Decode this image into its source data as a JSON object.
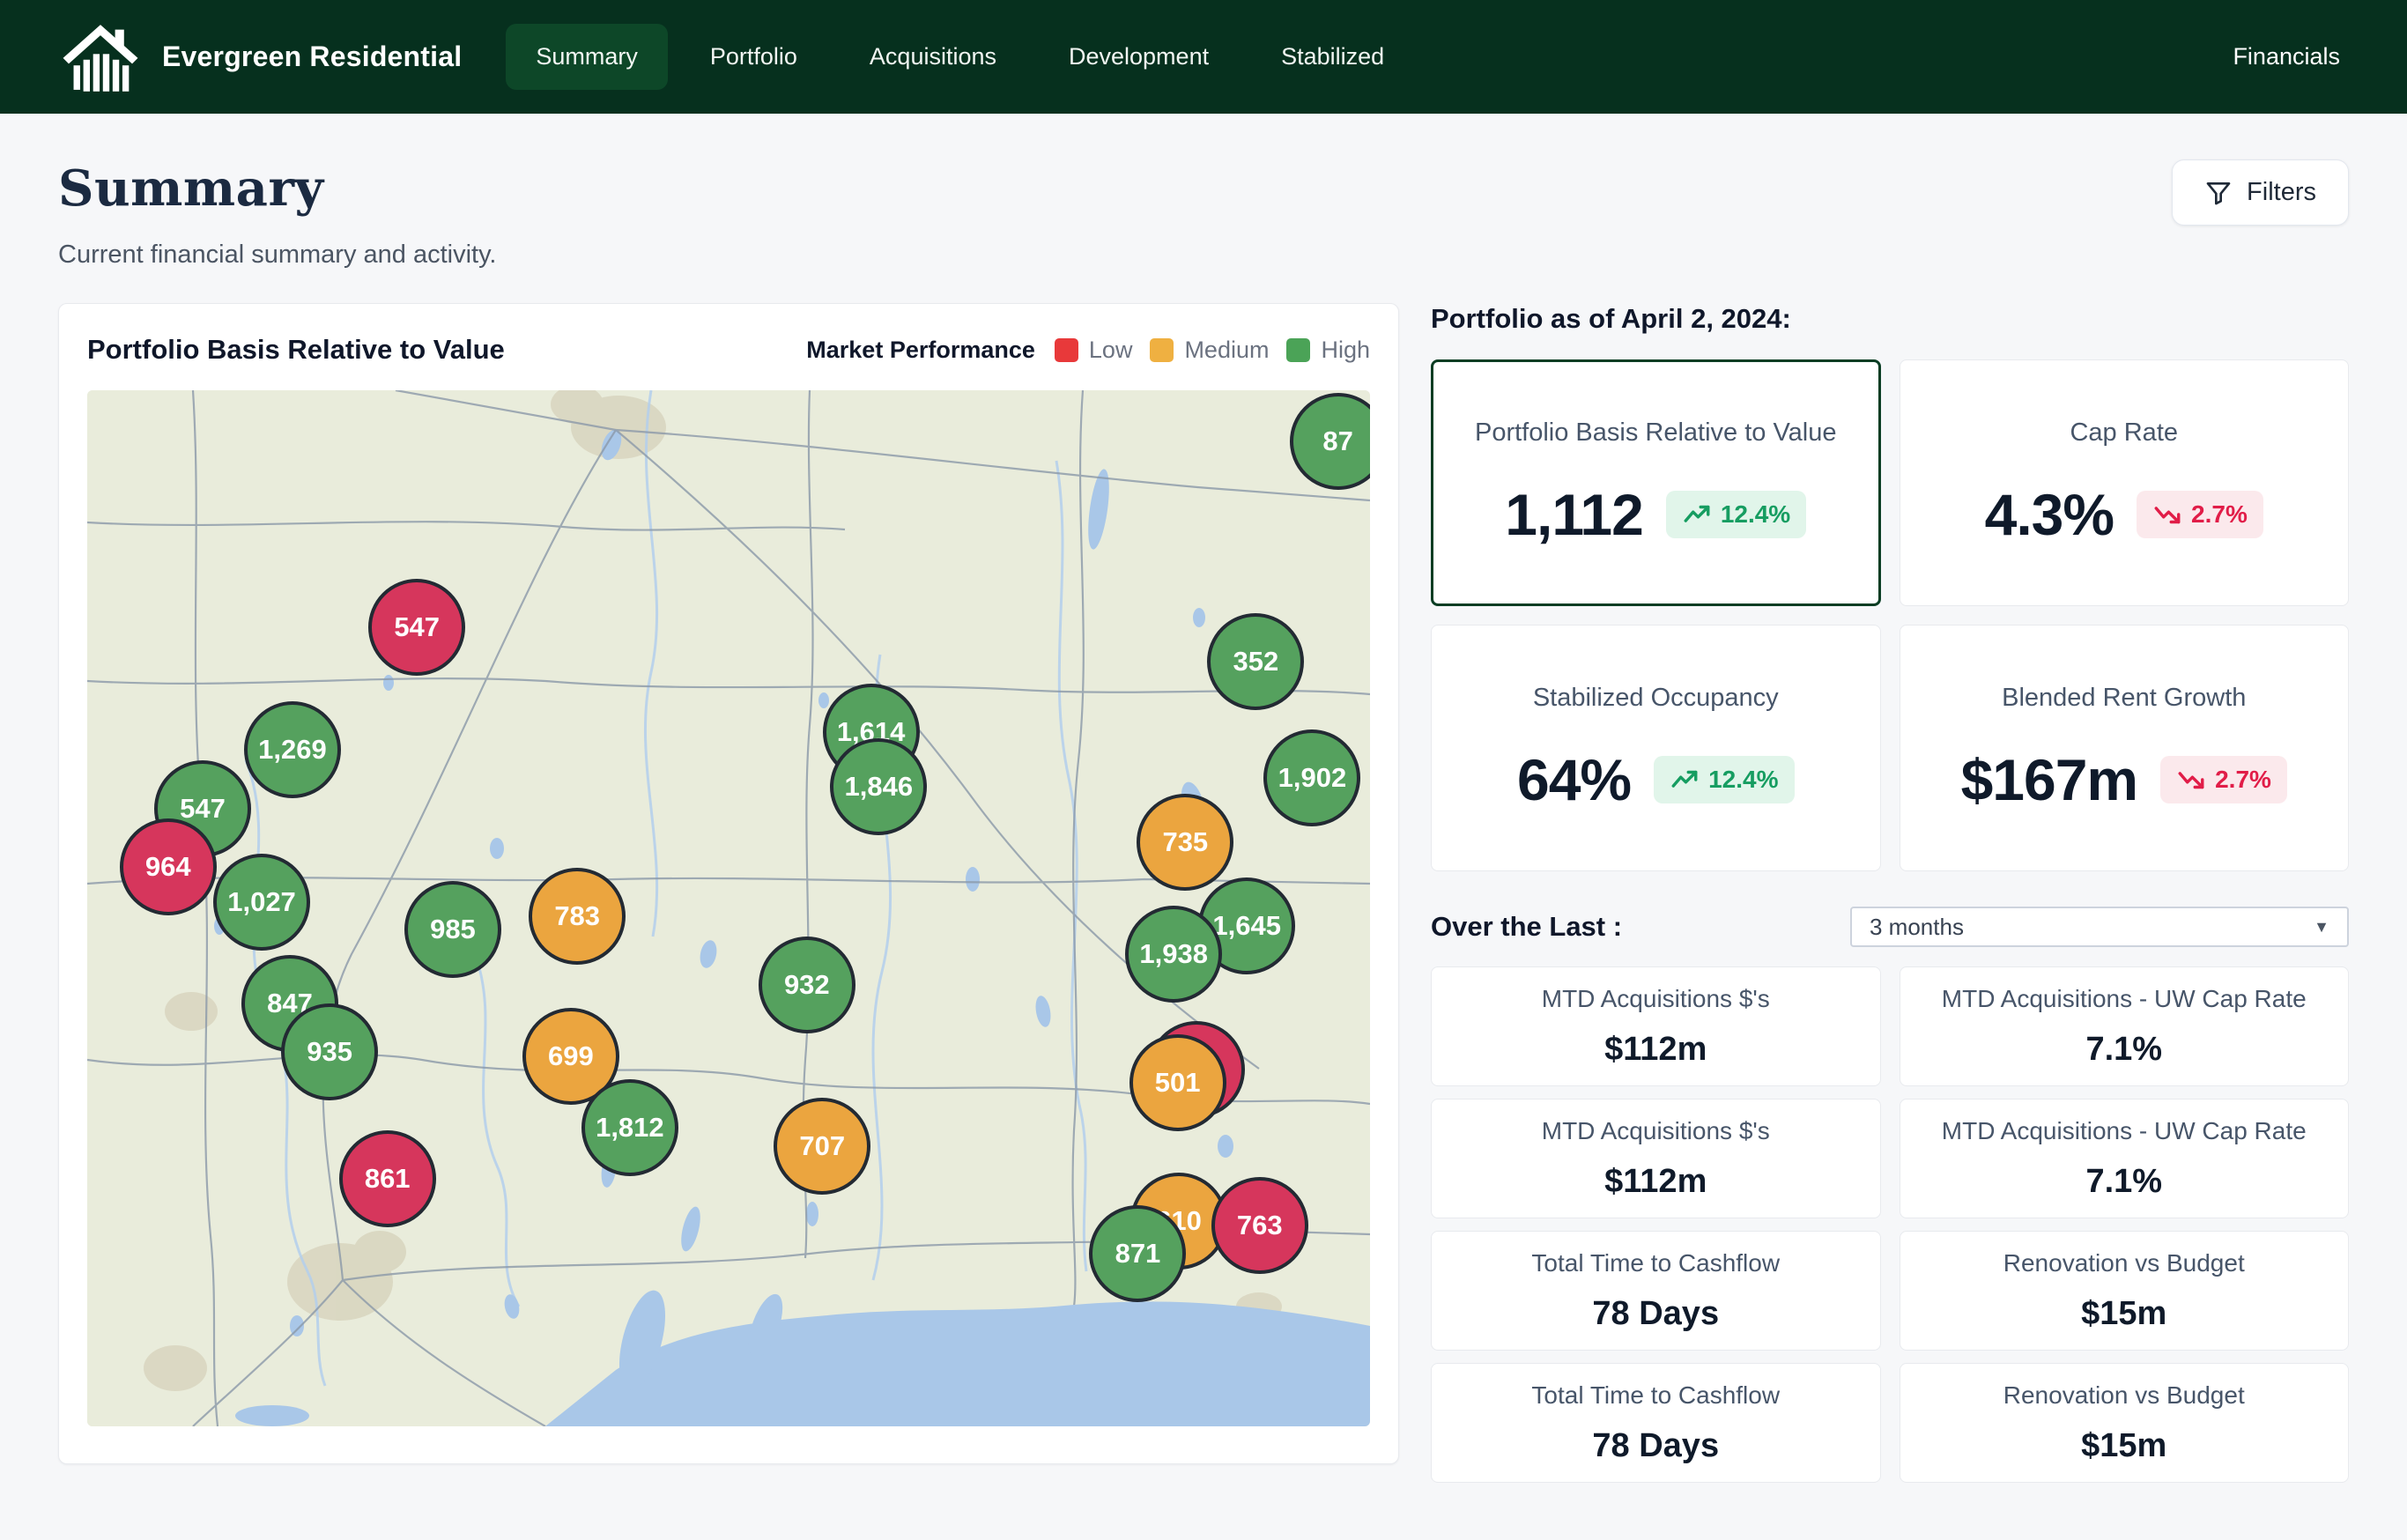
{
  "nav": {
    "brand": "Evergreen Residential",
    "items": [
      {
        "label": "Summary",
        "active": true
      },
      {
        "label": "Portfolio",
        "active": false
      },
      {
        "label": "Acquisitions",
        "active": false
      },
      {
        "label": "Development",
        "active": false
      },
      {
        "label": "Stabilized",
        "active": false
      }
    ],
    "right_item": "Financials"
  },
  "header": {
    "title": "Summary",
    "subtitle": "Current financial summary and activity.",
    "filters_label": "Filters"
  },
  "map_panel": {
    "title": "Portfolio Basis Relative to Value",
    "legend_title": "Market Performance",
    "legend": [
      {
        "label": "Low",
        "color": "#e8393a"
      },
      {
        "label": "Medium",
        "color": "#efb041"
      },
      {
        "label": "High",
        "color": "#4ba357"
      }
    ],
    "marker_colors": {
      "low": "#d6365c",
      "medium": "#eba53f",
      "high": "#55a15e"
    },
    "markers": [
      {
        "value": "87",
        "level": "high",
        "x": 97.5,
        "y": 4.9
      },
      {
        "value": "547",
        "level": "low",
        "x": 25.7,
        "y": 22.9
      },
      {
        "value": "352",
        "level": "high",
        "x": 91.1,
        "y": 26.2
      },
      {
        "value": "1,269",
        "level": "high",
        "x": 16.0,
        "y": 34.7
      },
      {
        "value": "1,614",
        "level": "high",
        "x": 61.1,
        "y": 33.0
      },
      {
        "value": "1,846",
        "level": "high",
        "x": 61.7,
        "y": 38.3
      },
      {
        "value": "1,902",
        "level": "high",
        "x": 95.5,
        "y": 37.4
      },
      {
        "value": "547",
        "level": "high",
        "x": 9.0,
        "y": 40.4
      },
      {
        "value": "964",
        "level": "low",
        "x": 6.3,
        "y": 46.0
      },
      {
        "value": "1,027",
        "level": "high",
        "x": 13.6,
        "y": 49.4
      },
      {
        "value": "735",
        "level": "medium",
        "x": 85.6,
        "y": 43.6
      },
      {
        "value": "783",
        "level": "medium",
        "x": 38.2,
        "y": 50.8
      },
      {
        "value": "985",
        "level": "high",
        "x": 28.5,
        "y": 52.0
      },
      {
        "value": "1,645",
        "level": "high",
        "x": 90.4,
        "y": 51.7
      },
      {
        "value": "1,938",
        "level": "high",
        "x": 84.7,
        "y": 54.4
      },
      {
        "value": "932",
        "level": "high",
        "x": 56.1,
        "y": 57.4
      },
      {
        "value": "847",
        "level": "high",
        "x": 15.8,
        "y": 59.2
      },
      {
        "value": "935",
        "level": "high",
        "x": 18.9,
        "y": 63.9
      },
      {
        "value": "699",
        "level": "medium",
        "x": 37.7,
        "y": 64.3
      },
      {
        "value": "1,812",
        "level": "high",
        "x": 42.3,
        "y": 71.2
      },
      {
        "value": "707",
        "level": "medium",
        "x": 57.3,
        "y": 73.0
      },
      {
        "value": "861",
        "level": "low",
        "x": 23.4,
        "y": 76.1
      },
      {
        "value": "558",
        "level": "low",
        "x": 86.5,
        "y": 65.6
      },
      {
        "value": "501",
        "level": "medium",
        "x": 85.0,
        "y": 66.8
      },
      {
        "value": "610",
        "level": "medium",
        "x": 85.1,
        "y": 80.2
      },
      {
        "value": "763",
        "level": "low",
        "x": 91.4,
        "y": 80.6
      },
      {
        "value": "871",
        "level": "high",
        "x": 81.9,
        "y": 83.3
      }
    ]
  },
  "portfolio": {
    "heading": "Portfolio as of April 2, 2024:",
    "badge_colors": {
      "up": {
        "text": "#169d61",
        "bg": "#e1f5ea"
      },
      "down": {
        "text": "#e11d48",
        "bg": "#fbe9ec"
      }
    },
    "kpis": [
      {
        "label": "Portfolio Basis Relative to Value",
        "value": "1,112",
        "change": "12.4%",
        "direction": "up",
        "selected": true
      },
      {
        "label": "Cap Rate",
        "value": "4.3%",
        "change": "2.7%",
        "direction": "down",
        "selected": false
      },
      {
        "label": "Stabilized Occupancy",
        "value": "64%",
        "change": "12.4%",
        "direction": "up",
        "selected": false
      },
      {
        "label": "Blended Rent Growth",
        "value": "$167m",
        "change": "2.7%",
        "direction": "down",
        "selected": false
      }
    ]
  },
  "over_last": {
    "label": "Over the Last :",
    "selected_option": "3 months",
    "metrics": [
      {
        "label": "MTD Acquisitions $'s",
        "value": "$112m"
      },
      {
        "label": "MTD Acquisitions - UW Cap Rate",
        "value": "7.1%"
      },
      {
        "label": "MTD Acquisitions $'s",
        "value": "$112m"
      },
      {
        "label": "MTD Acquisitions - UW Cap Rate",
        "value": "7.1%"
      },
      {
        "label": "Total Time to Cashflow",
        "value": "78 Days"
      },
      {
        "label": "Renovation vs Budget",
        "value": "$15m"
      },
      {
        "label": "Total Time to Cashflow",
        "value": "78 Days"
      },
      {
        "label": "Renovation vs Budget",
        "value": "$15m"
      }
    ]
  }
}
